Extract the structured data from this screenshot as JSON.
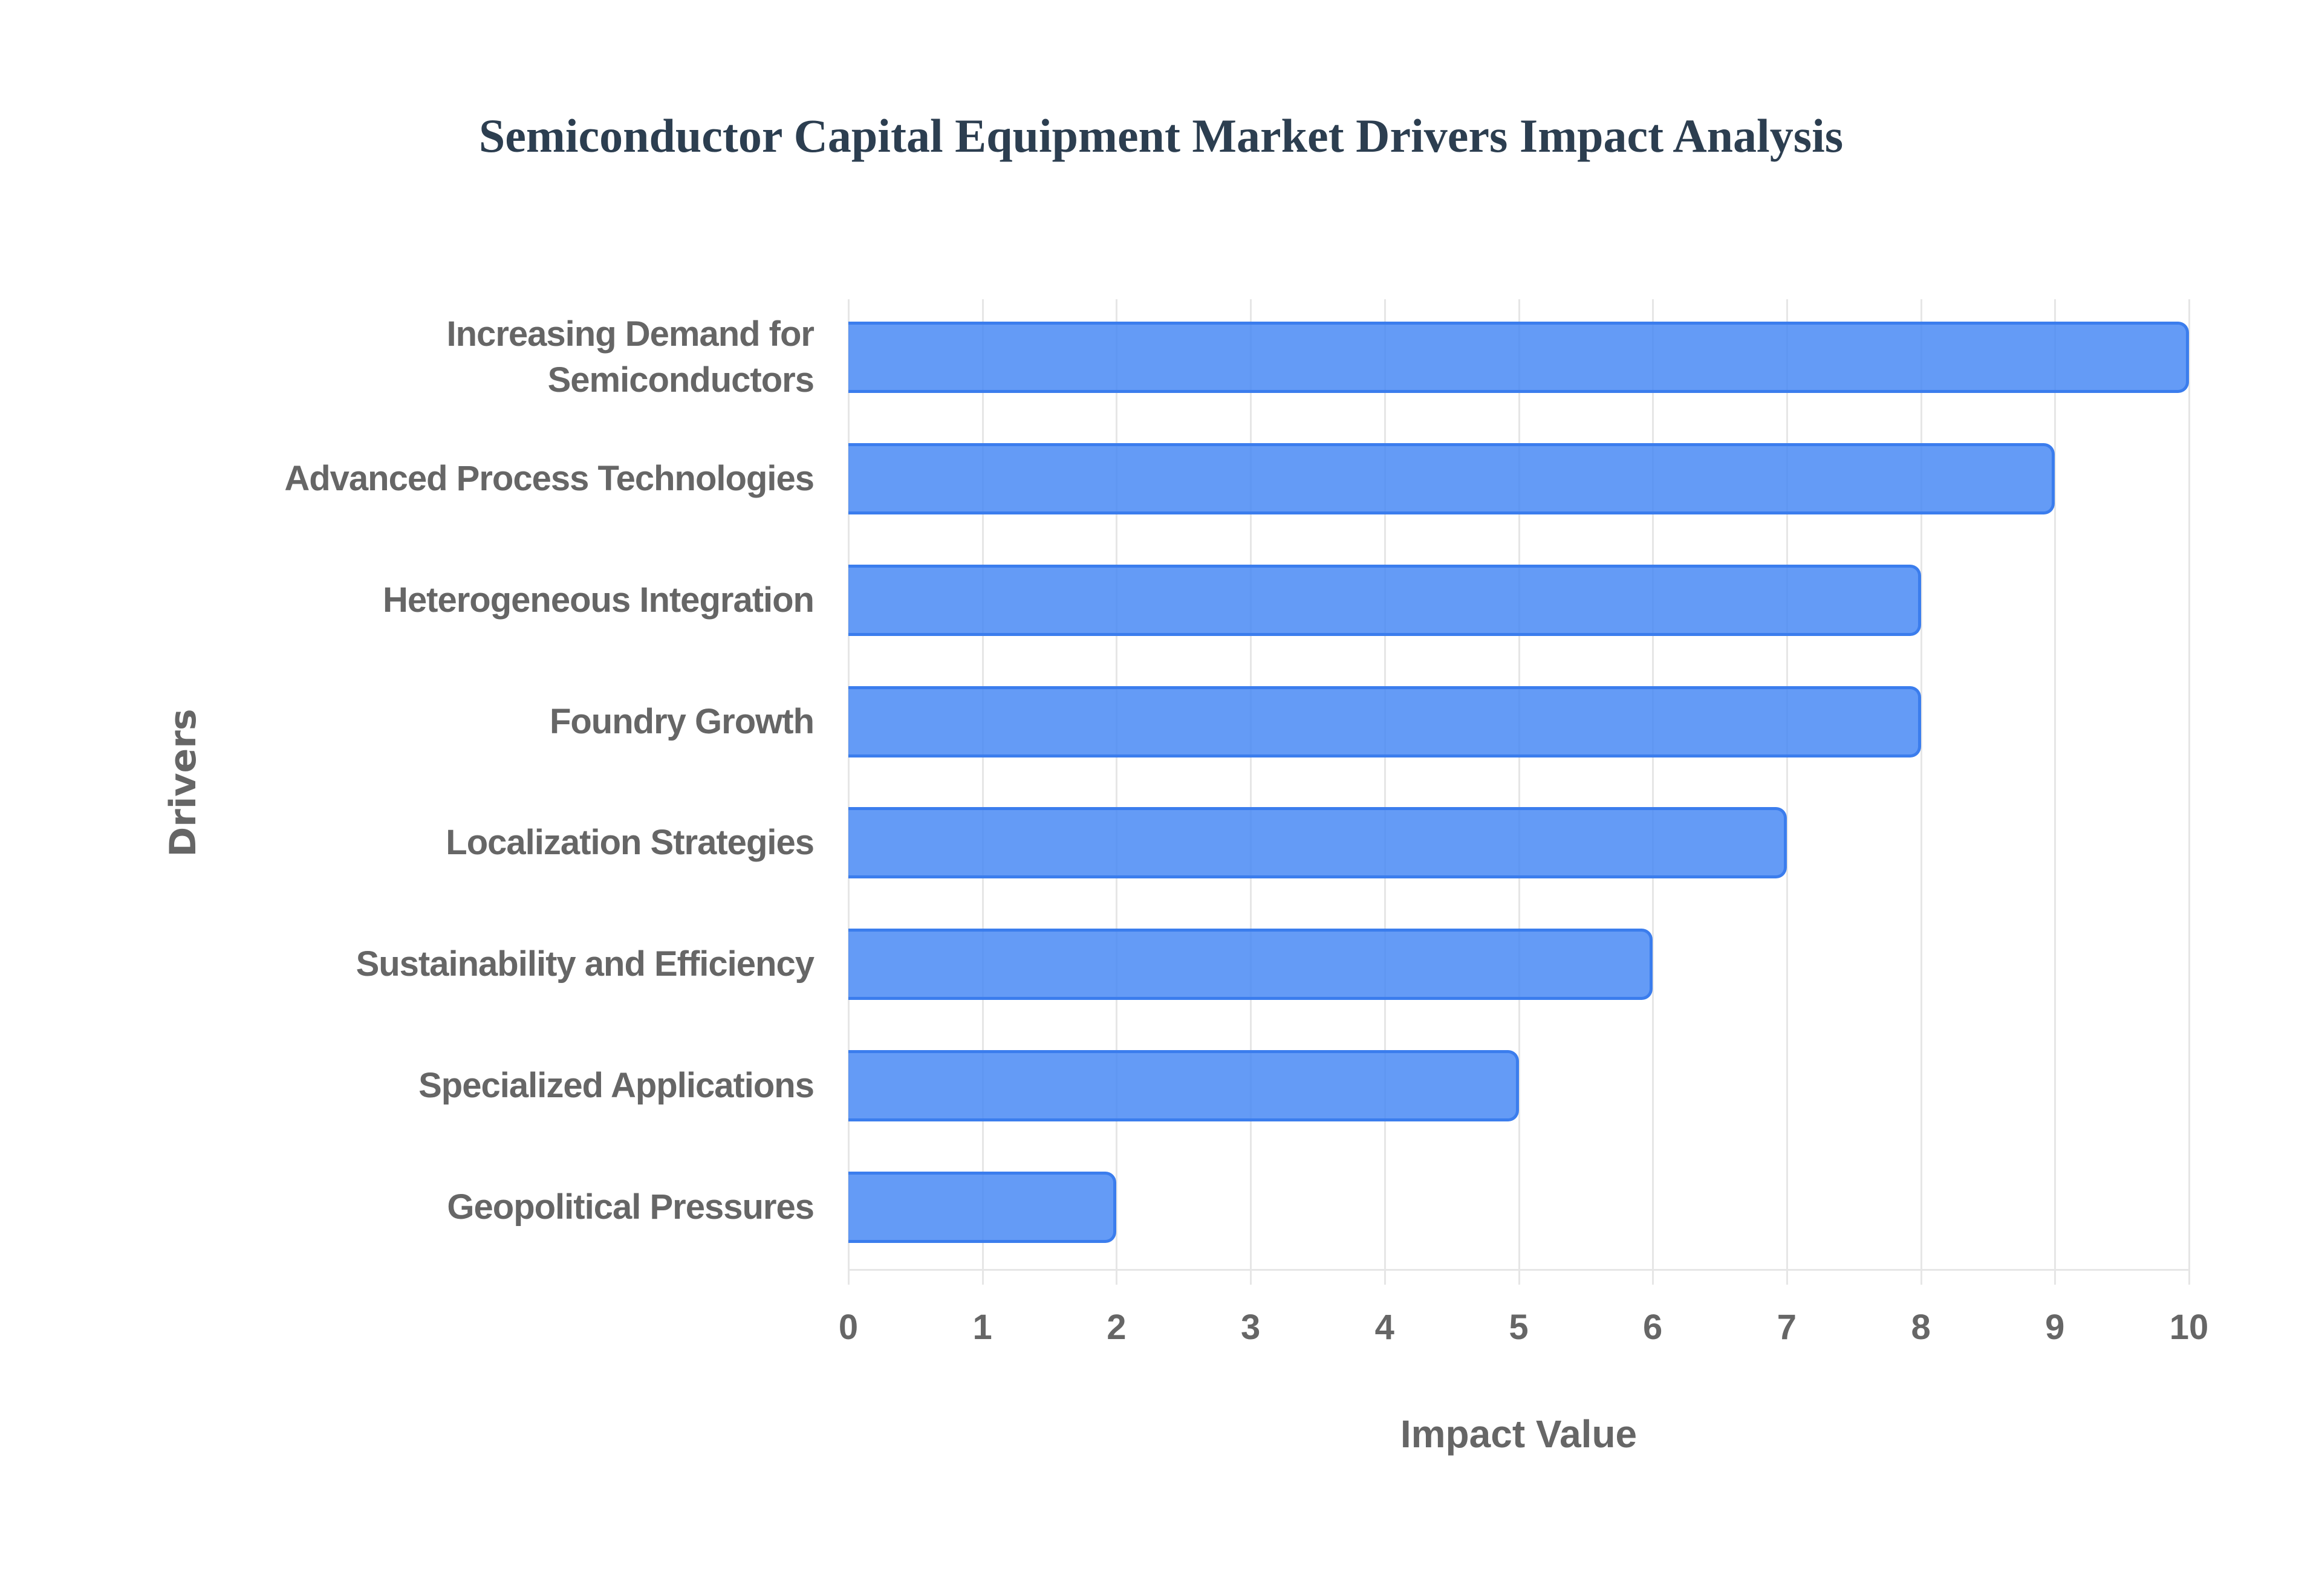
{
  "chart_data": {
    "type": "bar",
    "orientation": "horizontal",
    "title": "Semiconductor Capital Equipment Market Drivers Impact Analysis",
    "xlabel": "Impact Value",
    "ylabel": "Drivers",
    "xlim": [
      0,
      10
    ],
    "x_ticks": [
      "0",
      "1",
      "2",
      "3",
      "4",
      "5",
      "6",
      "7",
      "8",
      "9",
      "10"
    ],
    "grid": true,
    "legend": null,
    "categories": [
      "Increasing Demand for Semiconductors",
      "Advanced Process Technologies",
      "Heterogeneous Integration",
      "Foundry Growth",
      "Localization Strategies",
      "Sustainability and Efficiency",
      "Specialized Applications",
      "Geopolitical Pressures"
    ],
    "category_display_lines": [
      [
        "Increasing Demand for",
        "Semiconductors"
      ],
      [
        "Advanced Process Technologies"
      ],
      [
        "Heterogeneous Integration"
      ],
      [
        "Foundry Growth"
      ],
      [
        "Localization Strategies"
      ],
      [
        "Sustainability and Efficiency"
      ],
      [
        "Specialized Applications"
      ],
      [
        "Geopolitical Pressures"
      ]
    ],
    "values": [
      10,
      9,
      8,
      8,
      7,
      6,
      5,
      2
    ],
    "colors": {
      "bar_fill": "#639af5",
      "bar_border": "#3b7ded",
      "title": "#2c3e50",
      "axis_text": "#666666",
      "grid": "#e6e6e6"
    }
  }
}
